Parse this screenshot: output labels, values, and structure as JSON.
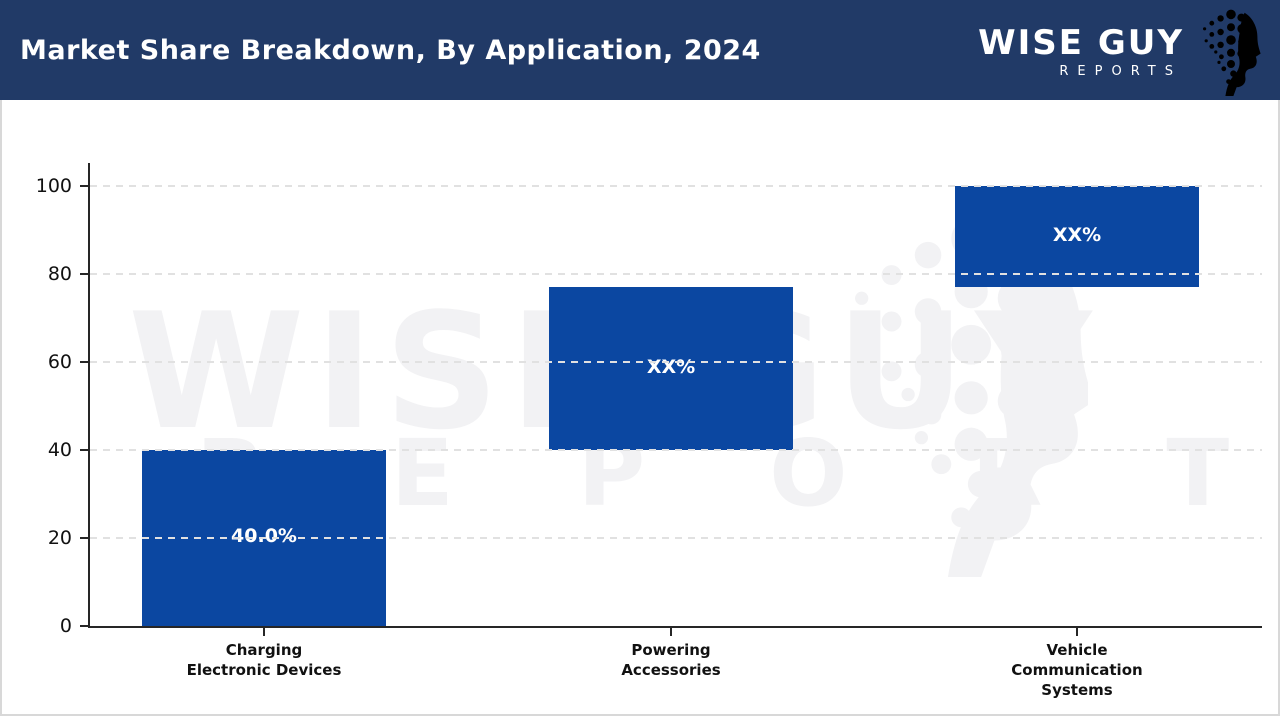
{
  "header": {
    "title": "Market Share Breakdown, By Application, 2024",
    "logo_line1": "WISE GUY",
    "logo_line2": "REPORTS"
  },
  "watermark": {
    "line1": "WISE GUY",
    "line2": "R E P O R T S"
  },
  "colors": {
    "header_bg": "#213a67",
    "bar": "#0b47a1",
    "bar_label": "#ffffff",
    "grid": "#e1e1e1",
    "axis": "#262626",
    "watermark": "#f2f2f4",
    "frame_border": "#d8d8d8"
  },
  "chart_data": {
    "type": "bar",
    "subtype": "waterfall",
    "title": "Market Share Breakdown, By Application, 2024",
    "categories": [
      [
        "Charging",
        "Electronic Devices"
      ],
      [
        "Powering",
        "Accessories"
      ],
      [
        "Vehicle",
        "Communication",
        "Systems"
      ]
    ],
    "segments": [
      {
        "from": 0,
        "to": 40,
        "value": 40,
        "label": "40.0%"
      },
      {
        "from": 40,
        "to": 77,
        "value": 37,
        "label": "XX%"
      },
      {
        "from": 77,
        "to": 100,
        "value": 23,
        "label": "XX%"
      }
    ],
    "yticks": [
      0,
      20,
      40,
      60,
      80,
      100
    ],
    "ylim": [
      0,
      105
    ],
    "xlabel": "",
    "ylabel": "",
    "grid": "dashed-horizontal",
    "legend": "none"
  }
}
